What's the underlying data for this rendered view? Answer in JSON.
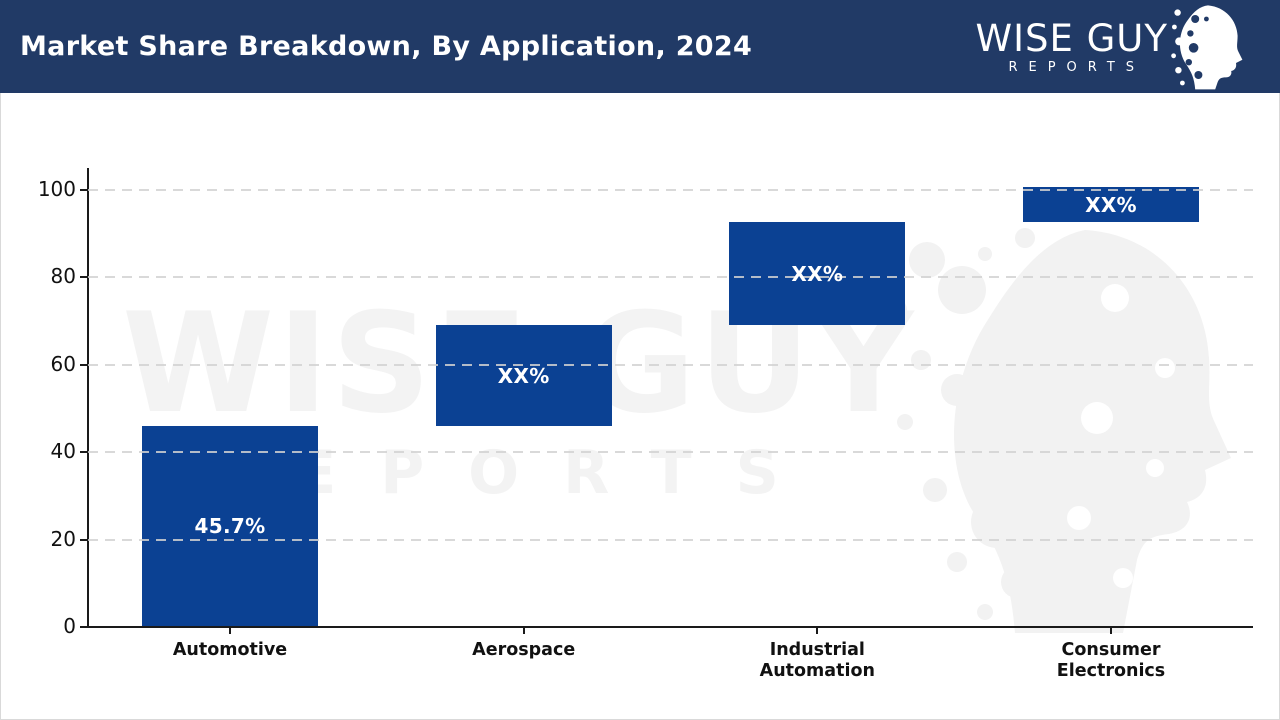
{
  "header": {
    "title": "Market Share Breakdown, By Application, 2024",
    "logo": {
      "line1": "WISE GUY",
      "line2": "REPORTS"
    }
  },
  "watermark": {
    "line1": "WISE GUY",
    "line2": "REPORTS"
  },
  "colors": {
    "header_bg": "#213a66",
    "bar_blue": "#0b4193",
    "axis": "#1a1a1a",
    "gridline": "#d2d2d2",
    "watermark": "#f3f3f3",
    "label_text": "#111111",
    "bar_label_text": "#ffffff"
  },
  "chart_data": {
    "type": "bar",
    "subtype": "waterfall (floating segments)",
    "title": "Market Share Breakdown, By Application, 2024",
    "xlabel": "",
    "ylabel": "",
    "ylim": [
      0,
      100
    ],
    "y_ticks": [
      0,
      20,
      40,
      60,
      80,
      100
    ],
    "grid": "dashed horizontal",
    "legend": "none",
    "categories": [
      "Automotive",
      "Aerospace",
      "Industrial\nAutomation",
      "Consumer\nElectronics"
    ],
    "segments": [
      {
        "category": "Automotive",
        "start": 0,
        "end": 45.7,
        "label": "45.7%"
      },
      {
        "category": "Aerospace",
        "start": 45.7,
        "end": 68.9,
        "label": "XX%"
      },
      {
        "category": "Industrial Automation",
        "start": 68.9,
        "end": 92.4,
        "label": "XX%"
      },
      {
        "category": "Consumer Electronics",
        "start": 92.4,
        "end": 100.4,
        "label": "XX%"
      }
    ]
  }
}
